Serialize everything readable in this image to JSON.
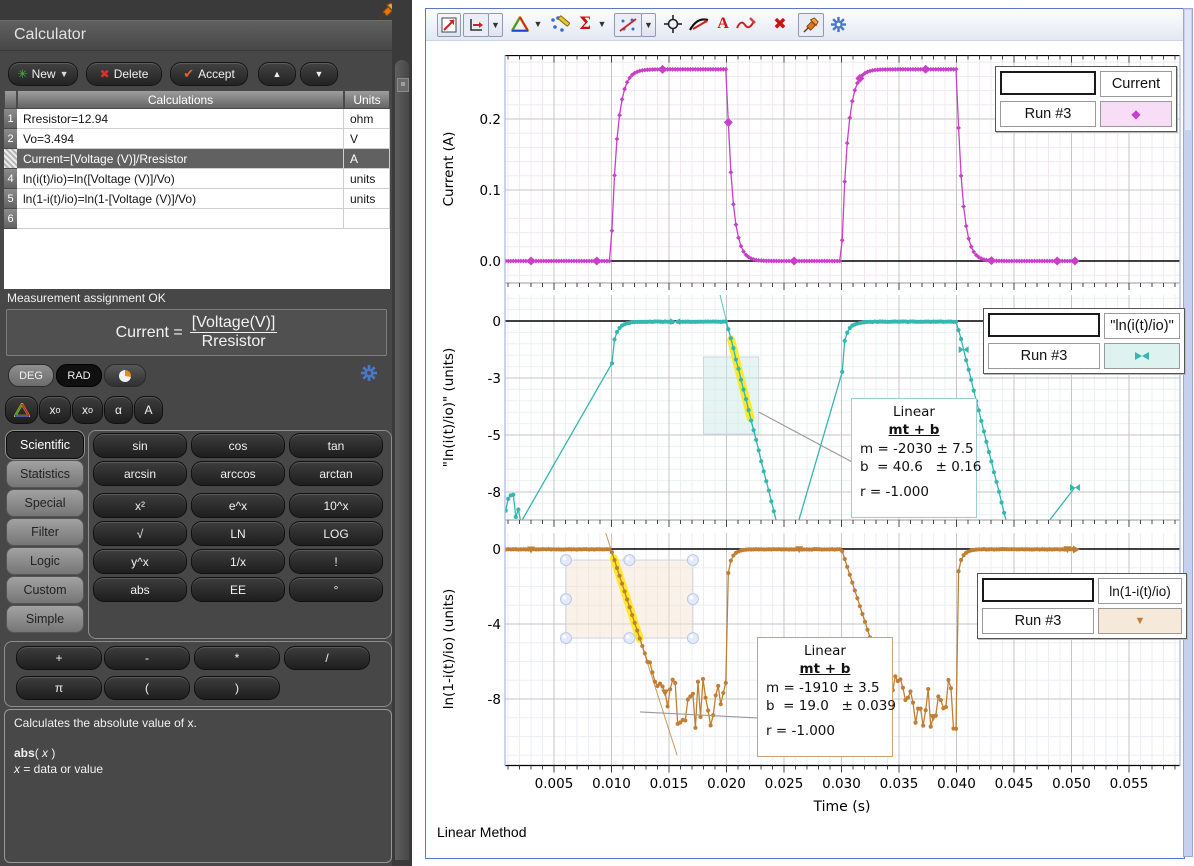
{
  "calculator": {
    "title": "Calculator",
    "toolbar": {
      "new": "New",
      "delete": "Delete",
      "accept": "Accept"
    },
    "table": {
      "headers": [
        "Calculations",
        "Units"
      ],
      "rows": [
        {
          "n": "1",
          "calc": "Rresistor=12.94",
          "unit": "ohm",
          "selected": false
        },
        {
          "n": "2",
          "calc": "Vo=3.494",
          "unit": "V",
          "selected": false
        },
        {
          "n": "3",
          "calc": "Current=[Voltage (V)]/Rresistor",
          "unit": "A",
          "selected": true
        },
        {
          "n": "4",
          "calc": "ln(i(t)/io)=ln([Voltage (V)]/Vo)",
          "unit": "units",
          "selected": false
        },
        {
          "n": "5",
          "calc": "ln(1-i(t)/io)=ln(1-[Voltage (V)]/Vo)",
          "unit": "units",
          "selected": false
        },
        {
          "n": "6",
          "calc": "",
          "unit": "",
          "selected": false
        }
      ]
    },
    "status": "Measurement assignment OK",
    "formula": {
      "lhs": "Current =",
      "numerator": "[Voltage(V)]",
      "denominator": "Rresistor"
    },
    "angle_buttons": {
      "deg": "DEG",
      "rad": "RAD",
      "active": "RAD"
    },
    "quick_buttons": [
      {
        "base": "x",
        "script": "o",
        "pos": "sup"
      },
      {
        "base": "x",
        "script": "o",
        "pos": "sub"
      },
      {
        "base": "α",
        "script": "",
        "pos": ""
      },
      {
        "base": "A",
        "script": "",
        "pos": ""
      }
    ],
    "tabs": [
      "Scientific",
      "Statistics",
      "Special",
      "Filter",
      "Logic",
      "Custom",
      "Simple"
    ],
    "active_tab": "Scientific",
    "keys": [
      [
        "sin",
        "cos",
        "tan"
      ],
      [
        "arcsin",
        "arccos",
        "arctan"
      ],
      [
        "x²",
        "e^x",
        "10^x"
      ],
      [
        "√",
        "LN",
        "LOG"
      ],
      [
        "y^x",
        "1/x",
        "!"
      ],
      [
        "abs",
        "EE",
        "°"
      ]
    ],
    "operators": [
      [
        "+",
        "-",
        "*",
        "/"
      ],
      [
        "π",
        "(",
        ")"
      ]
    ],
    "help": {
      "line1": "Calculates the absolute value of x.",
      "fn": "abs",
      "arg": "x",
      "line3_var": "x",
      "line3_rest": " = data or value"
    }
  },
  "graph_panel": {
    "toolbar_icons": [
      "zoom-extents",
      "pan-zoom",
      "coach-menu",
      "edit-points",
      "statistics",
      "function-fit",
      "scan",
      "slope",
      "text-annotation",
      "sketch",
      "delete",
      "pin",
      "settings"
    ],
    "footer": "Linear Method"
  },
  "chart_axis": {
    "label": "Time (s)",
    "ticks": [
      {
        "v": 0.005,
        "label": "0.005"
      },
      {
        "v": 0.01,
        "label": "0.010"
      },
      {
        "v": 0.015,
        "label": "0.015"
      },
      {
        "v": 0.02,
        "label": "0.020"
      },
      {
        "v": 0.025,
        "label": "0.025"
      },
      {
        "v": 0.03,
        "label": "0.030"
      },
      {
        "v": 0.035,
        "label": "0.035"
      },
      {
        "v": 0.04,
        "label": "0.040"
      },
      {
        "v": 0.045,
        "label": "0.045"
      },
      {
        "v": 0.05,
        "label": "0.050"
      },
      {
        "v": 0.055,
        "label": "0.055"
      }
    ]
  },
  "chart_data": [
    {
      "type": "line-scatter",
      "kind": "current",
      "ylabel": "Current (A)",
      "color": "#c83fc8",
      "marker": "diamond",
      "end_marker": "diamond",
      "yticks": [
        {
          "v": 0.2,
          "label": "0.2"
        },
        {
          "v": 0.1,
          "label": "0.1"
        },
        {
          "v": 0,
          "label": "0.0"
        }
      ],
      "minor_step": 0.02,
      "major_step": 0.1,
      "minor_color": "#f3e8f1",
      "signal": {
        "amplitude": 0.27,
        "tau_rise": 0.000524,
        "tau_fall": 0.000493,
        "on_windows": [
          [
            0.00995,
            0.02
          ],
          [
            0.03,
            0.04
          ]
        ],
        "t_start": 0.0008,
        "t_end": 0.0505,
        "dt": 0.00022
      },
      "big_marker_stride": 26,
      "legend": {
        "name": "Current",
        "run": "Run #3",
        "marker": "diamond",
        "cell_bg": "#f7ddf5"
      }
    },
    {
      "type": "line-scatter",
      "kind": "ln_i",
      "ylabel": "\"ln(i(t)/io)\" (units)",
      "color": "#34b7b1",
      "marker": "circle",
      "end_marker": "bowtie",
      "yticks": [
        {
          "v": 0,
          "label": "0"
        },
        {
          "v": -2.5,
          "label": "-3"
        },
        {
          "v": -5,
          "label": "-5"
        },
        {
          "v": -7.5,
          "label": "-8"
        }
      ],
      "minor_step": 0.5,
      "major_step": 2.5,
      "minor_color": "#e9f2f0",
      "signal": {
        "amplitude": 0.27,
        "tau_rise": 0.000524,
        "tau_fall": 0.000493,
        "on_windows": [
          [
            0.00995,
            0.02
          ],
          [
            0.03,
            0.04
          ]
        ],
        "t_start": 0.0008,
        "t_end": 0.0505,
        "dt": 0.00022,
        "pre_noise_until": 0.0022
      },
      "end_point": [
        0.0503,
        -7.3
      ],
      "big_marker_stride": 57,
      "fit": {
        "title": "Linear",
        "formula": "mt + b",
        "m": -2030,
        "b": 40.6,
        "m_label": "m = -2030 ± 7.5",
        "b_label": "b  = 40.6   ± 0.16",
        "r_label": "r = -1.000",
        "line_y": [
          1.3,
          -9.5
        ],
        "highlight_t": [
          0.0204,
          0.0221
        ],
        "selection": {
          "t": [
            0.018,
            0.0228
          ],
          "y": [
            -1.58,
            -4.96
          ],
          "fill": "rgba(205,235,233,0.5)",
          "handles": false
        },
        "connector": [
          [
            0.0228,
            -3.99
          ],
          [
            0.0309,
            -6.18
          ]
        ],
        "box": {
          "left": 439,
          "top": 398,
          "width": 126,
          "height": 120,
          "border": "#9ccdd4"
        }
      },
      "legend": {
        "name": "\"ln(i(t)/io)\"",
        "run": "Run #3",
        "marker": "bowtie",
        "cell_bg": "#def2f0"
      }
    },
    {
      "type": "line-scatter",
      "kind": "ln_1mi",
      "ylabel": "ln(1-i(t)/io) (units)",
      "color": "#c07f35",
      "marker": "circle",
      "end_marker": "arrow",
      "yticks": [
        {
          "v": 0,
          "label": "0"
        },
        {
          "v": -4,
          "label": "-4"
        },
        {
          "v": -8,
          "label": "-8"
        }
      ],
      "minor_step": 1,
      "major_step": 4,
      "minor_color": "#ebeef6",
      "signal": {
        "amplitude": 0.27,
        "tau_rise": 0.000524,
        "tau_fall": 0.000493,
        "on_windows": [
          [
            0.00995,
            0.02
          ],
          [
            0.03,
            0.04
          ]
        ],
        "t_start": 0.0008,
        "t_end": 0.0505,
        "dt": 0.00022
      },
      "big_marker_stride": 53,
      "fit": {
        "title": "Linear",
        "formula": "mt + b",
        "m": -1910,
        "b": 19.0,
        "m_label": "m = -1910 ± 3.5",
        "b_label": "b  = 19.0   ± 0.039",
        "r_label": "r = -1.000",
        "line_y": [
          0.85,
          -11
        ],
        "highlight_t": [
          0.0102,
          0.01245
        ],
        "selection": {
          "t": [
            0.00604,
            0.01708
          ],
          "y": [
            -0.59,
            -4.75
          ],
          "fill": "rgba(243,226,205,0.45)",
          "handles": true
        },
        "connector": [
          [
            0.01248,
            -8.69
          ],
          [
            0.02265,
            -9.01
          ]
        ],
        "box": {
          "left": 345,
          "top": 637,
          "width": 136,
          "height": 120,
          "border": "#cfa070"
        }
      },
      "legend": {
        "name": "ln(1-i(t)/io)",
        "run": "Run #3",
        "marker": "triangle-down",
        "cell_bg": "#f7e9d9"
      }
    }
  ]
}
